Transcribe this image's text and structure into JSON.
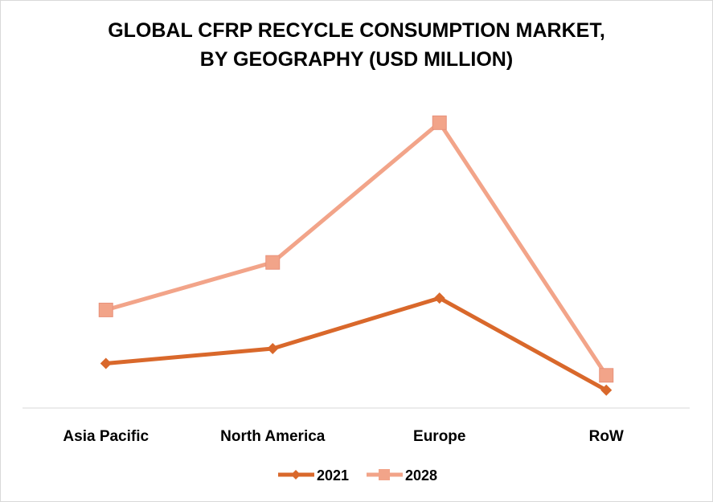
{
  "chart_data": {
    "type": "line",
    "title_line1": "GLOBAL CFRP RECYCLE CONSUMPTION MARKET,",
    "title_line2": "BY GEOGRAPHY (USD MILLION)",
    "categories": [
      "Asia Pacific",
      "North America",
      "Europe",
      "RoW"
    ],
    "series": [
      {
        "name": "2021",
        "values": [
          15.0,
          20.0,
          37.0,
          6.0
        ],
        "color": "#d9682b",
        "marker": "diamond"
      },
      {
        "name": "2028",
        "values": [
          33.0,
          49.0,
          96.0,
          11.0
        ],
        "color": "#f2a489",
        "marker": "square"
      }
    ],
    "ylim": [
      0,
      100
    ],
    "grid": false,
    "y_axis_visible": false,
    "legend": "bottom"
  }
}
